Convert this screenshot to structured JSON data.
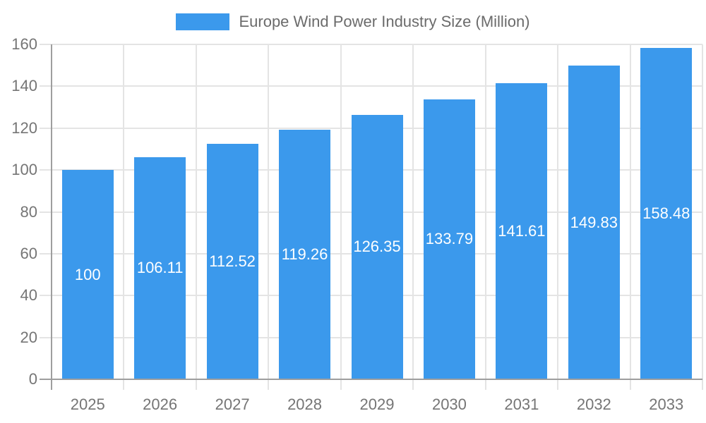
{
  "legend": {
    "label": "Europe Wind Power Industry Size (Million)"
  },
  "chart_data": {
    "type": "bar",
    "title": "Europe Wind Power Industry Size (Million)",
    "categories": [
      "2025",
      "2026",
      "2027",
      "2028",
      "2029",
      "2030",
      "2031",
      "2032",
      "2033"
    ],
    "values": [
      100,
      106.11,
      112.52,
      119.26,
      126.35,
      133.79,
      141.61,
      149.83,
      158.48
    ],
    "value_labels": [
      "100",
      "106.11",
      "112.52",
      "119.26",
      "126.35",
      "133.79",
      "141.61",
      "149.83",
      "158.48"
    ],
    "xlabel": "",
    "ylabel": "",
    "ylim": [
      0,
      160
    ],
    "yticks": [
      0,
      20,
      40,
      60,
      80,
      100,
      120,
      140,
      160
    ],
    "grid": true,
    "legend_position": "top-center",
    "colors": {
      "bar": "#3B99EC",
      "grid": "#E4E4E4",
      "axis": "#9E9E9E",
      "tick_label": "#757575",
      "legend_text": "#6B6B6B",
      "value_label": "#FFFFFF",
      "background": "#FFFFFF"
    }
  }
}
